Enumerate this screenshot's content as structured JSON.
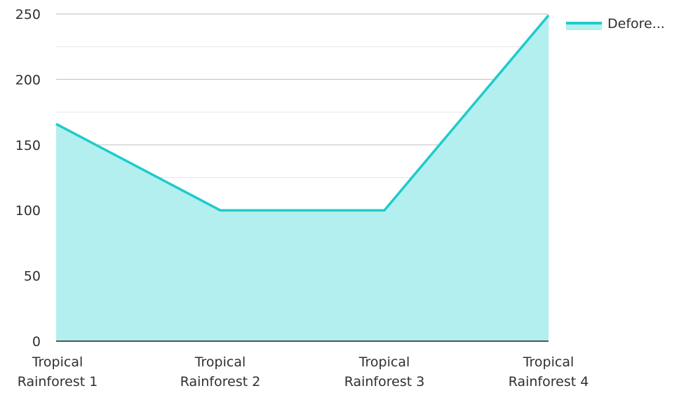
{
  "chart_data": {
    "type": "area",
    "categories": [
      "Tropical Rainforest 1",
      "Tropical Rainforest 2",
      "Tropical Rainforest 3",
      "Tropical Rainforest 4"
    ],
    "series": [
      {
        "name": "Defore...",
        "values": [
          166,
          100,
          100,
          249
        ]
      }
    ],
    "ylim": [
      0,
      250
    ],
    "yticks": [
      0,
      50,
      100,
      150,
      200,
      250
    ],
    "grid": true,
    "legend_position": "top-right",
    "colors": {
      "line": "#1fcbcb",
      "fill": "#b2efee",
      "grid": "#c8c8c8",
      "axis": "#222222"
    }
  }
}
